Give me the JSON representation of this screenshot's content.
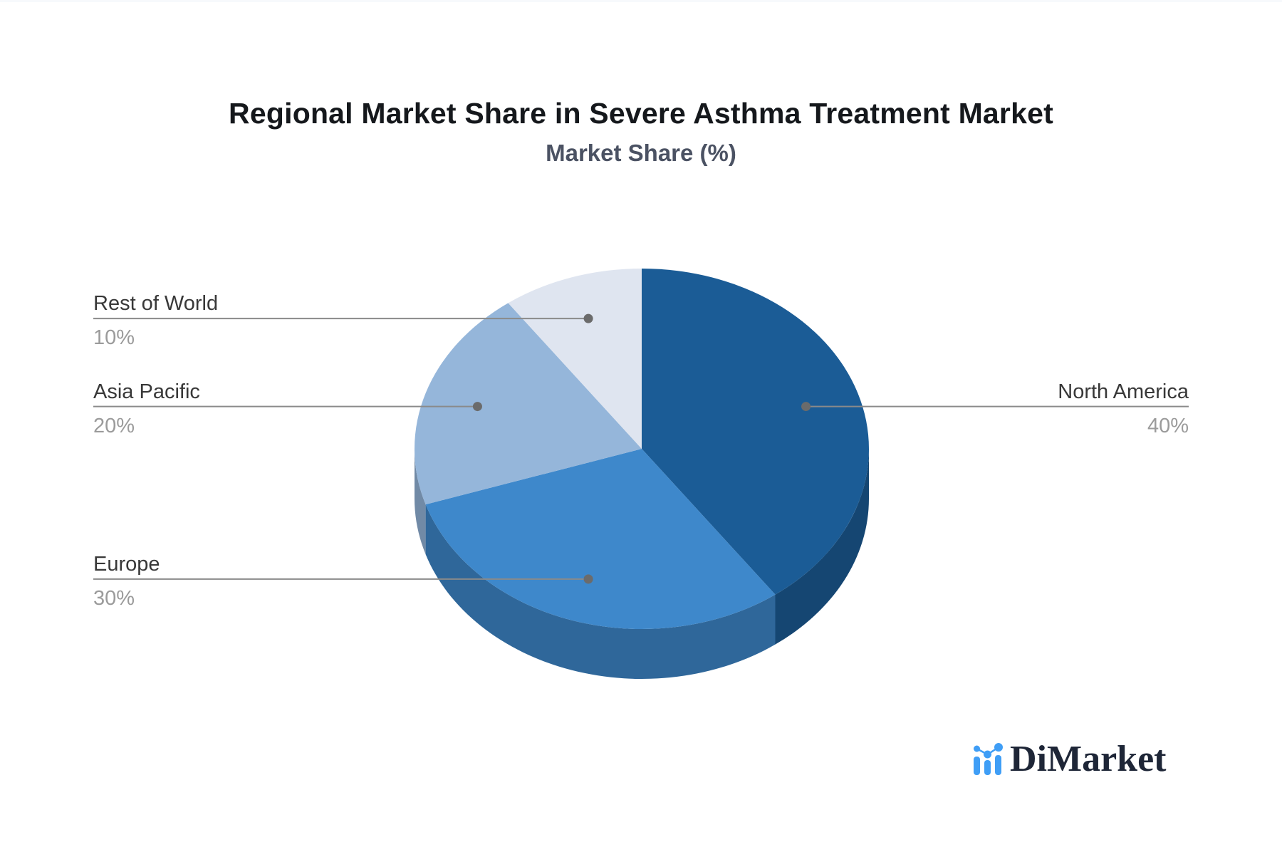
{
  "chart_data": {
    "type": "pie",
    "title": "Regional Market Share in Severe Asthma Treatment Market",
    "subtitle": "Market Share (%)",
    "unit": "%",
    "style": "3d-pie",
    "start_angle_deg": 90,
    "direction": "clockwise",
    "label_style": "leader-lines",
    "legend_position": "none",
    "slices": [
      {
        "label": "North America",
        "value": 40,
        "pct_label": "40%",
        "color": "#1b5c96"
      },
      {
        "label": "Europe",
        "value": 30,
        "pct_label": "30%",
        "color": "#3e88cb"
      },
      {
        "label": "Asia Pacific",
        "value": 20,
        "pct_label": "20%",
        "color": "#95b6da"
      },
      {
        "label": "Rest of World",
        "value": 10,
        "pct_label": "10%",
        "color": "#dfe5f0"
      }
    ],
    "leader_line_color": "#8a8a8a",
    "leader_dot_color": "#6b6b6b"
  },
  "logo": {
    "text": "DiMarket",
    "text_color": "#1e2637",
    "icon": "bar-chart-logo-icon",
    "icon_color": "#3f9ef6"
  }
}
